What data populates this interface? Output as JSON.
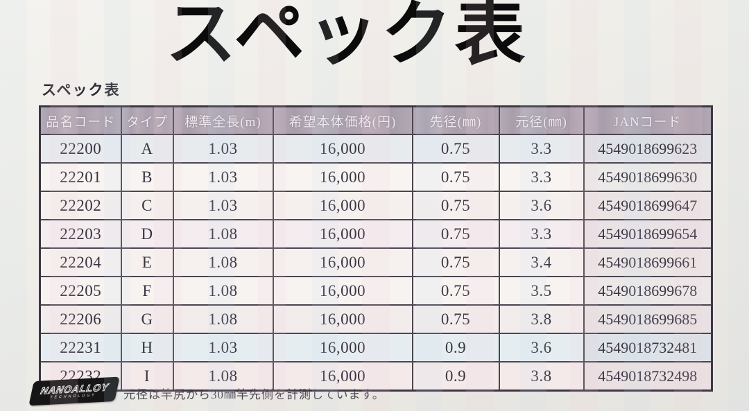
{
  "page": {
    "title": "スペック表",
    "subtitle": "スペック表"
  },
  "table": {
    "columns": [
      "品名コード",
      "タイプ",
      "標準全長(m)",
      "希望本体価格(円)",
      "先径(㎜)",
      "元径(㎜)",
      "JANコード"
    ],
    "rows": [
      [
        "22200",
        "A",
        "1.03",
        "16,000",
        "0.75",
        "3.3",
        "4549018699623"
      ],
      [
        "22201",
        "B",
        "1.03",
        "16,000",
        "0.75",
        "3.3",
        "4549018699630"
      ],
      [
        "22202",
        "C",
        "1.03",
        "16,000",
        "0.75",
        "3.6",
        "4549018699647"
      ],
      [
        "22203",
        "D",
        "1.08",
        "16,000",
        "0.75",
        "3.3",
        "4549018699654"
      ],
      [
        "22204",
        "E",
        "1.08",
        "16,000",
        "0.75",
        "3.4",
        "4549018699661"
      ],
      [
        "22205",
        "F",
        "1.08",
        "16,000",
        "0.75",
        "3.5",
        "4549018699678"
      ],
      [
        "22206",
        "G",
        "1.08",
        "16,000",
        "0.75",
        "3.8",
        "4549018699685"
      ],
      [
        "22231",
        "H",
        "1.03",
        "16,000",
        "0.9",
        "3.6",
        "4549018732481"
      ],
      [
        "22232",
        "I",
        "1.08",
        "16,000",
        "0.9",
        "3.8",
        "4549018732498"
      ]
    ]
  },
  "footer": {
    "logo_name": "NANOALLOY",
    "logo_sub": "TECHNOLOGY",
    "note": "元径は竿尻から30㎜竿先側を計測しています。"
  },
  "colors": {
    "header_bg": "#b0a5b1",
    "border": "#46414c",
    "logo_bg": "#161616",
    "row_tints": [
      "#e7ebee",
      "#f7f4f2",
      "#f5efee",
      "#f4ecee",
      "#f6f0ef",
      "#f7f3f1",
      "#f2ecec",
      "#e5edf0",
      "#f4eaea"
    ]
  }
}
